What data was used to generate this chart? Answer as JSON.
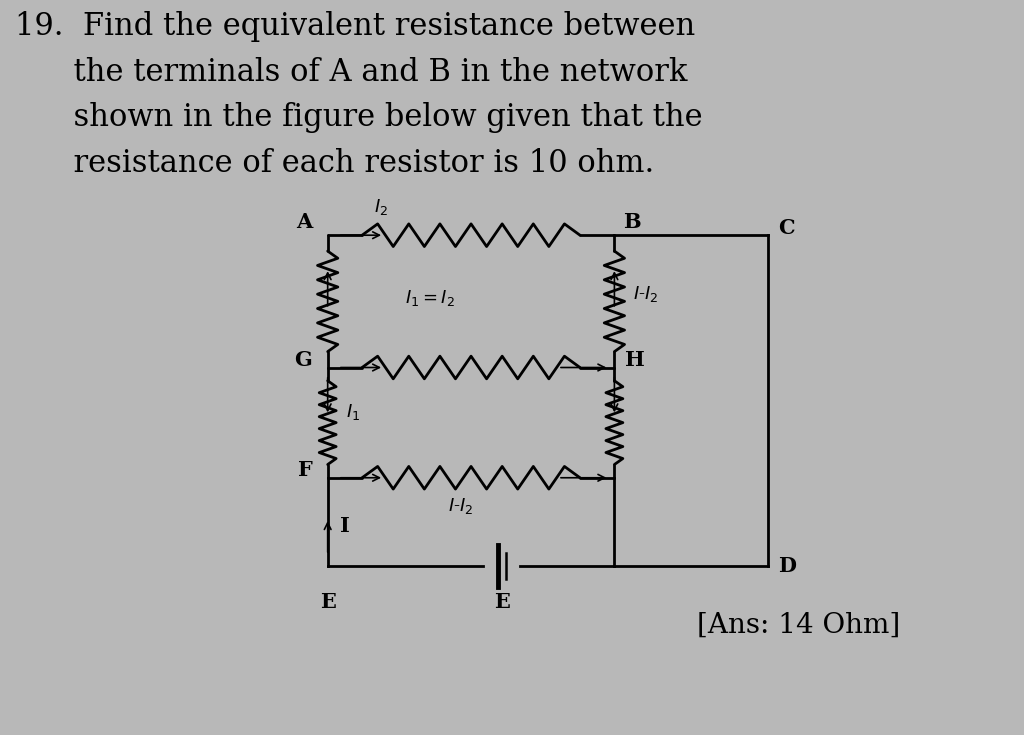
{
  "bg_color": "#b8b8b8",
  "text_color": "#000000",
  "line_color": "#000000",
  "title_lines": [
    "19.  Find the equivalent resistance between",
    "      the terminals of A and B in the network",
    "      shown in the figure below given that the",
    "      resistance of each resistor is 10 ohm."
  ],
  "answer_text": "[Ans: 14 Ohm]",
  "title_fontsize": 22,
  "ans_fontsize": 20,
  "label_fontsize": 14,
  "curr_fontsize": 13,
  "cL": 3.2,
  "cR": 6.0,
  "cFR": 7.5,
  "cTop": 6.8,
  "cMid": 5.0,
  "cLow": 3.5,
  "cBot": 2.3,
  "lw": 2.0
}
